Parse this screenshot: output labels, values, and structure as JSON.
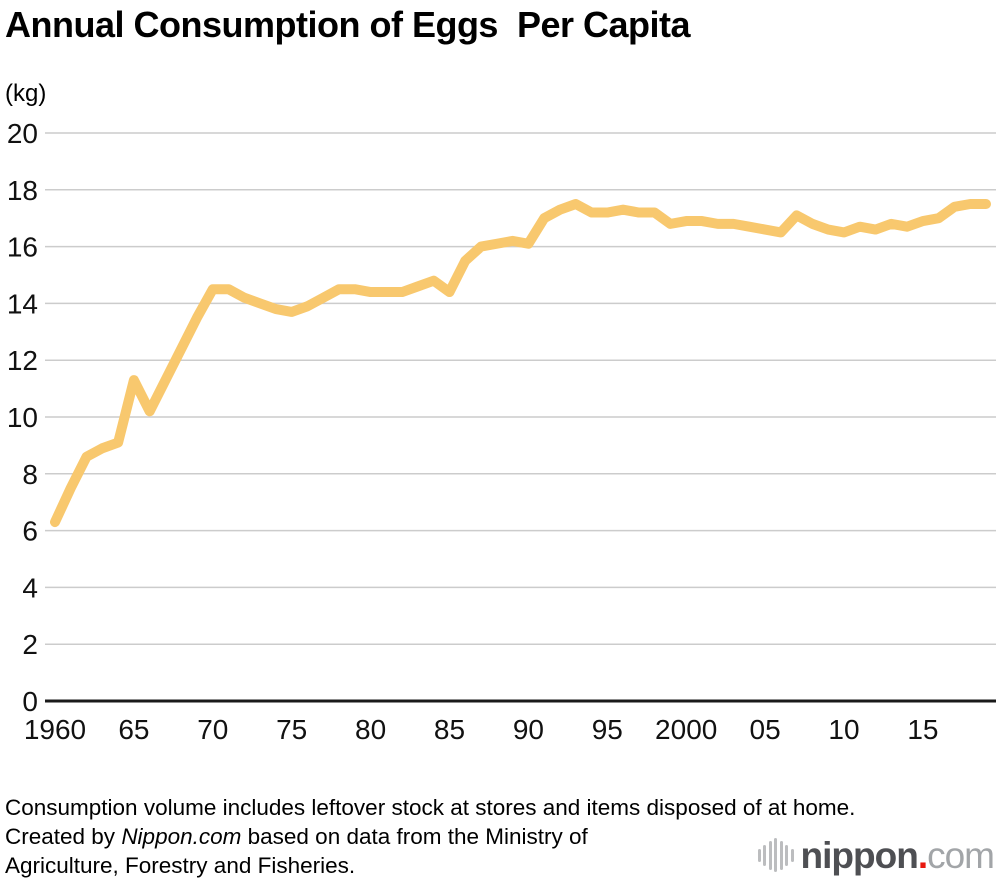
{
  "header": {
    "title": "Annual Consumption of Eggs  Per Capita",
    "unit_label": "(kg)"
  },
  "chart_data": {
    "type": "line",
    "title": "Annual Consumption of Eggs  Per Capita",
    "ylabel": "(kg)",
    "ylim": [
      0,
      20
    ],
    "grid": true,
    "legend": false,
    "series_name": "Annual egg consumption per capita (kg)",
    "yticks": [
      0,
      2,
      4,
      6,
      8,
      10,
      12,
      14,
      16,
      18,
      20
    ],
    "xticks": [
      {
        "label": "1960",
        "year": 1960
      },
      {
        "label": "65",
        "year": 1965
      },
      {
        "label": "70",
        "year": 1970
      },
      {
        "label": "75",
        "year": 1975
      },
      {
        "label": "80",
        "year": 1980
      },
      {
        "label": "85",
        "year": 1985
      },
      {
        "label": "90",
        "year": 1990
      },
      {
        "label": "95",
        "year": 1995
      },
      {
        "label": "2000",
        "year": 2000
      },
      {
        "label": "05",
        "year": 2005
      },
      {
        "label": "10",
        "year": 2010
      },
      {
        "label": "15",
        "year": 2015
      }
    ],
    "x": [
      1960,
      1961,
      1962,
      1963,
      1964,
      1965,
      1966,
      1967,
      1968,
      1969,
      1970,
      1971,
      1972,
      1973,
      1974,
      1975,
      1976,
      1977,
      1978,
      1979,
      1980,
      1981,
      1982,
      1983,
      1984,
      1985,
      1986,
      1987,
      1988,
      1989,
      1990,
      1991,
      1992,
      1993,
      1994,
      1995,
      1996,
      1997,
      1998,
      1999,
      2000,
      2001,
      2002,
      2003,
      2004,
      2005,
      2006,
      2007,
      2008,
      2009,
      2010,
      2011,
      2012,
      2013,
      2014,
      2015,
      2016,
      2017,
      2018,
      2019
    ],
    "values": [
      6.3,
      7.5,
      8.6,
      8.9,
      9.1,
      11.3,
      10.2,
      11.3,
      12.4,
      13.5,
      14.5,
      14.5,
      14.2,
      14.0,
      13.8,
      13.7,
      13.9,
      14.2,
      14.5,
      14.5,
      14.4,
      14.4,
      14.4,
      14.6,
      14.8,
      14.4,
      15.5,
      16.0,
      16.1,
      16.2,
      16.1,
      17.0,
      17.3,
      17.5,
      17.2,
      17.2,
      17.3,
      17.2,
      17.2,
      16.8,
      16.9,
      16.9,
      16.8,
      16.8,
      16.7,
      16.6,
      16.5,
      17.1,
      16.8,
      16.6,
      16.5,
      16.7,
      16.6,
      16.8,
      16.7,
      16.9,
      17.0,
      17.4,
      17.5,
      17.5
    ],
    "line_color": "#F8C86E",
    "grid_color": "#CCCCCC",
    "axis_color": "#1A1A1A"
  },
  "footer": {
    "note": "Consumption volume includes leftover stock at stores and items disposed of at home.",
    "credit_prefix": "Created by ",
    "credit_source": "Nippon.com",
    "credit_suffix": " based on data from the Ministry of Agriculture, Forestry and Fisheries."
  },
  "logo": {
    "name": "nippon.com",
    "icon": "audio-bars-icon",
    "text_main": "nippon",
    "text_dot": ".",
    "text_tld": "com",
    "colors": {
      "main": "#4e4f53",
      "dot": "#e8190f",
      "tld": "#a2a5a8"
    }
  }
}
